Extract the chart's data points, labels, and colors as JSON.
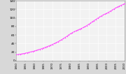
{
  "years": [
    1950,
    1951,
    1952,
    1953,
    1954,
    1955,
    1956,
    1957,
    1958,
    1959,
    1960,
    1961,
    1962,
    1963,
    1964,
    1965,
    1966,
    1967,
    1968,
    1969,
    1970,
    1971,
    1972,
    1973,
    1974,
    1975,
    1976,
    1977,
    1978,
    1979,
    1980,
    1981,
    1982,
    1983,
    1984,
    1985,
    1986,
    1987,
    1988,
    1989,
    1990,
    1991,
    1992,
    1993,
    1994,
    1995,
    1996,
    1997,
    1998,
    1999,
    2000,
    2001,
    2002,
    2003,
    2004,
    2005,
    2006,
    2007,
    2008,
    2009,
    2010
  ],
  "population": [
    13873,
    14529,
    15224,
    15965,
    16754,
    17600,
    18508,
    19481,
    20518,
    21613,
    22778,
    24013,
    25319,
    26695,
    28144,
    29664,
    31249,
    32894,
    34589,
    36328,
    38129,
    40028,
    42058,
    44220,
    46520,
    48972,
    51591,
    54376,
    57298,
    60318,
    63030,
    65476,
    67668,
    69666,
    71597,
    73506,
    75424,
    77418,
    79594,
    82069,
    84917,
    87826,
    90700,
    93539,
    96363,
    99145,
    101795,
    104306,
    106700,
    108918,
    110771,
    113122,
    115590,
    118132,
    120676,
    123172,
    125507,
    127523,
    129428,
    131241,
    132960
  ],
  "line_color": "#ff44ff",
  "dot_color": "#ff44ff",
  "fig_bg": "#d8d8d8",
  "plot_bg": "#f2f2f2",
  "grid_color": "#ffffff",
  "ylim": [
    0,
    140000
  ],
  "xlim": [
    1950,
    2010
  ],
  "yticks": [
    0,
    20000,
    40000,
    60000,
    80000,
    100000,
    120000,
    140000
  ],
  "ytick_labels": [
    "0",
    "20",
    "40",
    "60",
    "80",
    "100",
    "120",
    "140"
  ],
  "xtick_step": 5,
  "ylabel_fontsize": 3.2,
  "xlabel_fontsize": 2.8
}
